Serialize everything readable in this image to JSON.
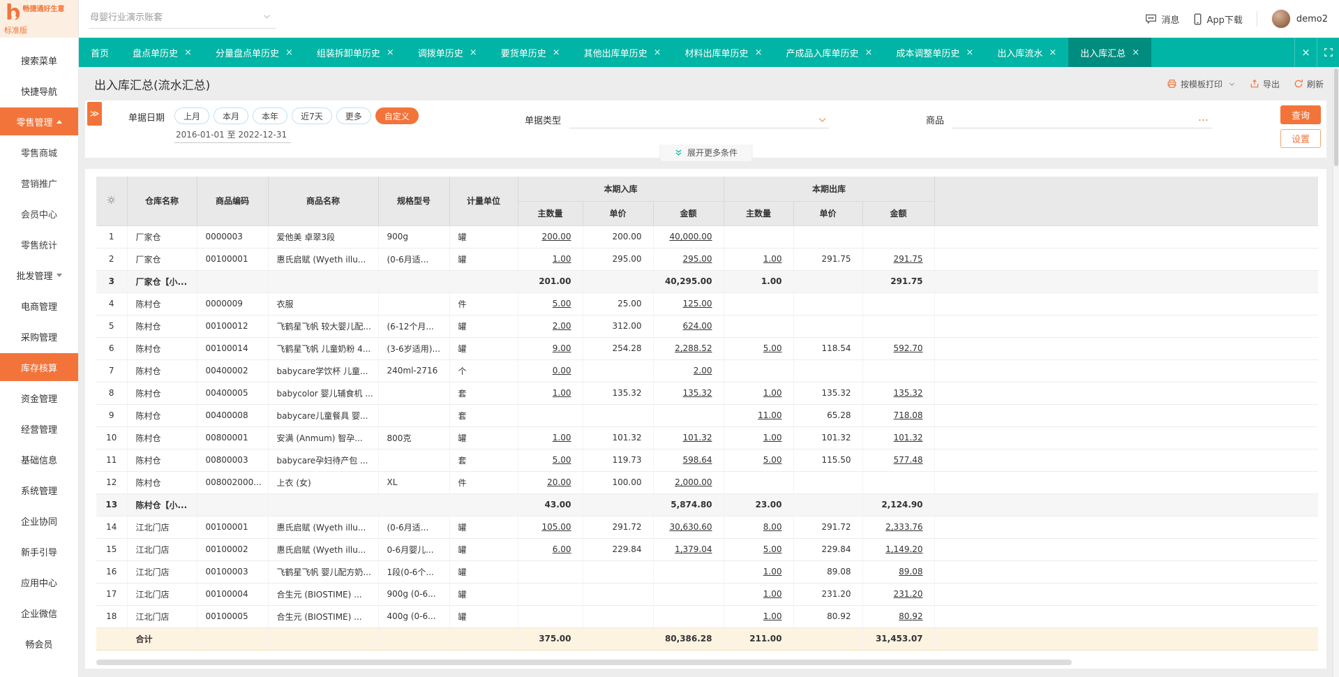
{
  "brand": {
    "name": "畅捷通好生意",
    "edition": "标准版"
  },
  "topbar": {
    "account": "母婴行业演示账套",
    "messages": "消息",
    "app_download": "App下载",
    "username": "demo2"
  },
  "tabs": [
    {
      "label": "首页",
      "closable": false,
      "active": false
    },
    {
      "label": "盘点单历史",
      "closable": true,
      "active": false
    },
    {
      "label": "分量盘点单历史",
      "closable": true,
      "active": false
    },
    {
      "label": "组装拆卸单历史",
      "closable": true,
      "active": false
    },
    {
      "label": "调拨单历史",
      "closable": true,
      "active": false
    },
    {
      "label": "要货单历史",
      "closable": true,
      "active": false
    },
    {
      "label": "其他出库单历史",
      "closable": true,
      "active": false
    },
    {
      "label": "材料出库单历史",
      "closable": true,
      "active": false
    },
    {
      "label": "产成品入库单历史",
      "closable": true,
      "active": false
    },
    {
      "label": "成本调整单历史",
      "closable": true,
      "active": false
    },
    {
      "label": "出入库流水",
      "closable": true,
      "active": false
    },
    {
      "label": "出入库汇总",
      "closable": true,
      "active": true
    }
  ],
  "sidebar": {
    "items": [
      {
        "label": "搜索菜单",
        "style": "item"
      },
      {
        "label": "快捷导航",
        "style": "item"
      },
      {
        "label": "零售管理",
        "style": "group",
        "caret": "up"
      },
      {
        "label": "零售商城",
        "style": "sub"
      },
      {
        "label": "营销推广",
        "style": "sub"
      },
      {
        "label": "会员中心",
        "style": "sub"
      },
      {
        "label": "零售统计",
        "style": "sub"
      },
      {
        "label": "批发管理",
        "style": "item",
        "caret": "down"
      },
      {
        "label": "电商管理",
        "style": "item"
      },
      {
        "label": "采购管理",
        "style": "item"
      },
      {
        "label": "库存核算",
        "style": "active"
      },
      {
        "label": "资金管理",
        "style": "item"
      },
      {
        "label": "经营管理",
        "style": "item"
      },
      {
        "label": "基础信息",
        "style": "item"
      },
      {
        "label": "系统管理",
        "style": "item"
      },
      {
        "label": "企业协同",
        "style": "item"
      },
      {
        "label": "新手引导",
        "style": "item"
      },
      {
        "label": "应用中心",
        "style": "item"
      },
      {
        "label": "企业微信",
        "style": "item"
      },
      {
        "label": "畅会员",
        "style": "item"
      }
    ]
  },
  "page": {
    "title": "出入库汇总(流水汇总)"
  },
  "toolbar": {
    "print": "按模板打印",
    "export": "导出",
    "refresh": "刷新"
  },
  "filters": {
    "date_label": "单据日期",
    "date_pills": [
      "上月",
      "本月",
      "本年",
      "近7天",
      "更多"
    ],
    "custom_pill": "自定义",
    "date_range": "2016-01-01 至 2022-12-31",
    "doc_type_label": "单据类型",
    "product_label": "商品",
    "query_btn": "查询",
    "settings_btn": "设置",
    "expand_more": "展开更多条件"
  },
  "table": {
    "headers": {
      "warehouse": "仓库名称",
      "code": "商品编码",
      "name": "商品名称",
      "spec": "规格型号",
      "unit": "计量单位",
      "group_in": "本期入库",
      "group_out": "本期出库",
      "qty": "主数量",
      "price": "单价",
      "amount": "金额"
    },
    "rows": [
      {
        "num": "1",
        "wh": "厂家仓",
        "code": "0000003",
        "name": "爱他美 卓翠3段",
        "spec": "900g",
        "unit": "罐",
        "in": {
          "qty": "200.00",
          "price": "200.00",
          "amt": "40,000.00"
        },
        "out": {}
      },
      {
        "num": "2",
        "wh": "厂家仓",
        "code": "00100001",
        "name": "惠氏启赋 (Wyeth illu...",
        "spec": "(0-6月适...",
        "unit": "罐",
        "in": {
          "qty": "1.00",
          "price": "295.00",
          "amt": "295.00"
        },
        "out": {
          "qty": "1.00",
          "price": "291.75",
          "amt": "291.75"
        }
      },
      {
        "num": "3",
        "wh": "厂家仓【小...",
        "summary": true,
        "in": {
          "qty": "201.00",
          "amt": "40,295.00"
        },
        "out": {
          "qty": "1.00",
          "amt": "291.75"
        }
      },
      {
        "num": "4",
        "wh": "陈村仓",
        "code": "0000009",
        "name": "衣服",
        "spec": "",
        "unit": "件",
        "in": {
          "qty": "5.00",
          "price": "25.00",
          "amt": "125.00"
        },
        "out": {}
      },
      {
        "num": "5",
        "wh": "陈村仓",
        "code": "00100012",
        "name": "飞鹤星飞帆 较大婴儿配...",
        "spec": "(6-12个月...",
        "unit": "罐",
        "in": {
          "qty": "2.00",
          "price": "312.00",
          "amt": "624.00"
        },
        "out": {}
      },
      {
        "num": "6",
        "wh": "陈村仓",
        "code": "00100014",
        "name": "飞鹤星飞帆 儿童奶粉 4...",
        "spec": "(3-6岁适用)...",
        "unit": "罐",
        "in": {
          "qty": "9.00",
          "price": "254.28",
          "amt": "2,288.52"
        },
        "out": {
          "qty": "5.00",
          "price": "118.54",
          "amt": "592.70"
        }
      },
      {
        "num": "7",
        "wh": "陈村仓",
        "code": "00400002",
        "name": "babycare学饮杯 儿童...",
        "spec": "240ml-2716",
        "unit": "个",
        "in": {
          "qty": "0.00",
          "price": "",
          "amt": "2.00"
        },
        "out": {}
      },
      {
        "num": "8",
        "wh": "陈村仓",
        "code": "00400005",
        "name": "babycolor 婴儿辅食机 ...",
        "spec": "",
        "unit": "套",
        "in": {
          "qty": "1.00",
          "price": "135.32",
          "amt": "135.32"
        },
        "out": {
          "qty": "1.00",
          "price": "135.32",
          "amt": "135.32"
        }
      },
      {
        "num": "9",
        "wh": "陈村仓",
        "code": "00400008",
        "name": "babycare儿童餐具 婴...",
        "spec": "",
        "unit": "套",
        "in": {},
        "out": {
          "qty": "11.00",
          "price": "65.28",
          "amt": "718.08"
        }
      },
      {
        "num": "10",
        "wh": "陈村仓",
        "code": "00800001",
        "name": "安满 (Anmum) 智孕...",
        "spec": "800克",
        "unit": "罐",
        "in": {
          "qty": "1.00",
          "price": "101.32",
          "amt": "101.32"
        },
        "out": {
          "qty": "1.00",
          "price": "101.32",
          "amt": "101.32"
        }
      },
      {
        "num": "11",
        "wh": "陈村仓",
        "code": "00800003",
        "name": "babycare孕妇待产包 ...",
        "spec": "",
        "unit": "套",
        "in": {
          "qty": "5.00",
          "price": "119.73",
          "amt": "598.64"
        },
        "out": {
          "qty": "5.00",
          "price": "115.50",
          "amt": "577.48"
        }
      },
      {
        "num": "12",
        "wh": "陈村仓",
        "code": "008002000...",
        "name": "上衣 (女)",
        "spec": "XL",
        "unit": "件",
        "in": {
          "qty": "20.00",
          "price": "100.00",
          "amt": "2,000.00"
        },
        "out": {}
      },
      {
        "num": "13",
        "wh": "陈村仓【小...",
        "summary": true,
        "in": {
          "qty": "43.00",
          "amt": "5,874.80"
        },
        "out": {
          "qty": "23.00",
          "amt": "2,124.90"
        }
      },
      {
        "num": "14",
        "wh": "江北门店",
        "code": "00100001",
        "name": "惠氏启赋 (Wyeth illu...",
        "spec": "(0-6月适...",
        "unit": "罐",
        "in": {
          "qty": "105.00",
          "price": "291.72",
          "amt": "30,630.60"
        },
        "out": {
          "qty": "8.00",
          "price": "291.72",
          "amt": "2,333.76"
        }
      },
      {
        "num": "15",
        "wh": "江北门店",
        "code": "00100002",
        "name": "惠氏启赋 (Wyeth illu...",
        "spec": "0-6月婴儿...",
        "unit": "罐",
        "in": {
          "qty": "6.00",
          "price": "229.84",
          "amt": "1,379.04"
        },
        "out": {
          "qty": "5.00",
          "price": "229.84",
          "amt": "1,149.20"
        }
      },
      {
        "num": "16",
        "wh": "江北门店",
        "code": "00100003",
        "name": "飞鹤星飞帆 婴儿配方奶...",
        "spec": "1段(0-6个...",
        "unit": "罐",
        "in": {},
        "out": {
          "qty": "1.00",
          "price": "89.08",
          "amt": "89.08"
        }
      },
      {
        "num": "17",
        "wh": "江北门店",
        "code": "00100004",
        "name": "合生元 (BIOSTIME) ...",
        "spec": "900g (0-6...",
        "unit": "罐",
        "in": {},
        "out": {
          "qty": "1.00",
          "price": "231.20",
          "amt": "231.20"
        }
      },
      {
        "num": "18",
        "wh": "江北门店",
        "code": "00100005",
        "name": "合生元 (BIOSTIME) ...",
        "spec": "400g (0-6...",
        "unit": "罐",
        "in": {},
        "out": {
          "qty": "1.00",
          "price": "80.92",
          "amt": "80.92"
        }
      }
    ],
    "total": {
      "label": "合计",
      "in_qty": "375.00",
      "in_amt": "80,386.28",
      "out_qty": "211.00",
      "out_amt": "31,453.07"
    }
  }
}
